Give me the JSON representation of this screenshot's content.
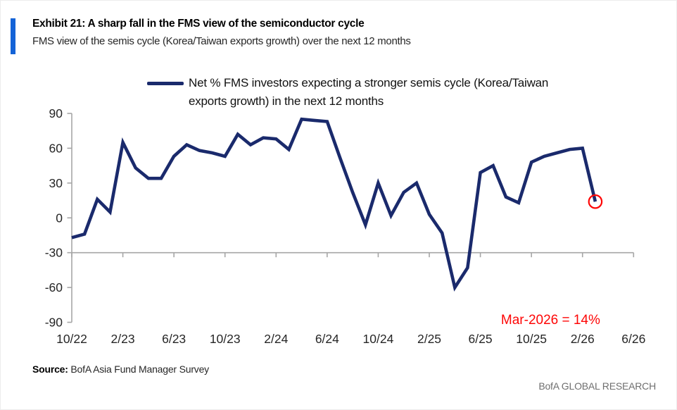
{
  "header": {
    "title": "Exhibit 21: A sharp fall in the FMS view of the semiconductor cycle",
    "subtitle": "FMS view of the semis cycle (Korea/Taiwan exports growth) over the next 12 months"
  },
  "legend": {
    "line1": "Net % FMS investors expecting a stronger semis cycle (Korea/Taiwan",
    "line2": "exports growth)  in the next 12 months"
  },
  "chart_data": {
    "type": "line",
    "title": "Net % FMS investors expecting a stronger semis cycle (Korea/Taiwan exports growth) in the next 12 months",
    "months": [
      "Oct-22",
      "Nov-22",
      "Dec-22",
      "Jan-23",
      "Feb-23",
      "Mar-23",
      "Apr-23",
      "May-23",
      "Jun-23",
      "Jul-23",
      "Aug-23",
      "Sep-23",
      "Oct-23",
      "Nov-23",
      "Dec-23",
      "Jan-24",
      "Feb-24",
      "Mar-24",
      "Apr-24",
      "May-24",
      "Jun-24",
      "Jul-24",
      "Aug-24",
      "Sep-24",
      "Oct-24",
      "Nov-24",
      "Dec-24",
      "Jan-25",
      "Feb-25",
      "Mar-25",
      "Apr-25",
      "May-25",
      "Jun-25",
      "Jul-25",
      "Aug-25",
      "Sep-25",
      "Oct-25",
      "Nov-25",
      "Dec-25",
      "Jan-26",
      "Feb-26",
      "Mar-26"
    ],
    "values": [
      -17,
      -14,
      16,
      5,
      65,
      43,
      34,
      34,
      53,
      63,
      58,
      56,
      53,
      72,
      63,
      69,
      68,
      59,
      85,
      84,
      83,
      52,
      22,
      -6,
      30,
      2,
      22,
      30,
      3,
      -13,
      -60,
      -43,
      39,
      45,
      18,
      13,
      48,
      53,
      56,
      59,
      60,
      14
    ],
    "x_tick_labels": [
      "10/22",
      "2/23",
      "6/23",
      "10/23",
      "2/24",
      "6/24",
      "10/24",
      "2/25",
      "6/25",
      "10/25",
      "2/26",
      "6/26"
    ],
    "x_tick_every_months": 4,
    "x_axis_total_months": 44,
    "y_ticks": [
      90,
      60,
      30,
      0,
      -30,
      -60,
      -90
    ],
    "ylim": [
      -90,
      90
    ],
    "x_axis_crosses_at": -30,
    "grid": "off",
    "legend_position": "top",
    "line_color": "#1a2a6c",
    "axis_color": "#a6a6a6",
    "tick_label_color": "#262626",
    "annotation": {
      "text": "Mar-2026 = 14%",
      "color": "#fe0606",
      "highlight_last_point": true
    }
  },
  "footer": {
    "source_label": "Source:",
    "source_text": " BofA Asia Fund Manager Survey",
    "brand": "BofA GLOBAL RESEARCH"
  },
  "colors": {
    "accent_blue": "#1463d7",
    "line_navy": "#1a2a6c",
    "annotation_red": "#fe0606",
    "axis_gray": "#a6a6a6",
    "text_dark": "#262626"
  }
}
